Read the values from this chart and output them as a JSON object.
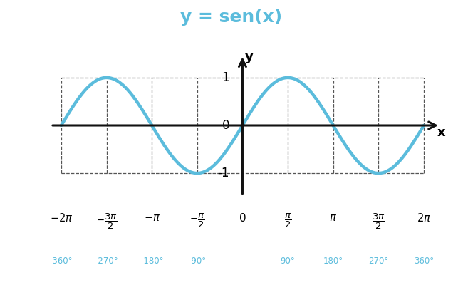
{
  "title": "y = sen(x)",
  "title_color": "#5bbcdc",
  "title_fontsize": 18,
  "curve_color": "#5bbcdc",
  "curve_linewidth": 3.2,
  "background_color": "#ffffff",
  "grid_color": "#555555",
  "grid_linestyle": "--",
  "grid_linewidth": 0.9,
  "axis_color": "#111111",
  "axis_linewidth": 2.2,
  "bottom_label_color": "#5bbcdc",
  "pi_positions": [
    -6.283185307,
    -4.71238898,
    -3.141592653,
    -1.5707963,
    0,
    1.5707963,
    3.141592653,
    4.71238898,
    6.283185307
  ],
  "degree_labels": [
    "-360°",
    "-270°",
    "-180°",
    "-90°",
    "",
    "90°",
    "180°",
    "270°",
    "360°"
  ]
}
